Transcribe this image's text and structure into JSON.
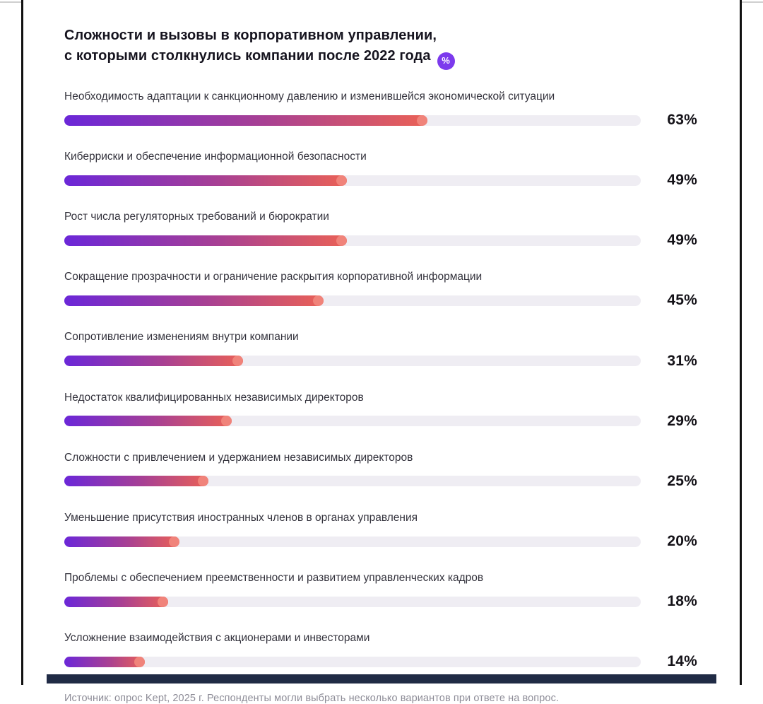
{
  "header": {
    "title_line1": "Сложности и вызовы в корпоративном управлении,",
    "title_line2": "с которыми столкнулись компании после 2022 года",
    "badge_symbol": "%",
    "badge_color": "#7c3aed"
  },
  "chart_data": {
    "type": "bar",
    "orientation": "horizontal",
    "unit": "%",
    "xlim": [
      0,
      100
    ],
    "grid": false,
    "legend": "none",
    "title": "Сложности и вызовы в корпоративном управлении, с которыми столкнулись компании после 2022 года",
    "categories": [
      "Необходимость адаптации к санкционному давлению и изменившейся экономической ситуации",
      "Киберриски и обеспечение информационной безопасности",
      "Рост числа регуляторных требований и бюрократии",
      "Сокращение прозрачности и ограничение раскрытия корпоративной информации",
      "Сопротивление изменениям внутри компании",
      "Недостаток квалифицированных независимых директоров",
      "Сложности с привлечением и удержанием независимых директоров",
      "Уменьшение присутствия иностранных членов в органах управления",
      "Проблемы с обеспечением преемственности и развитием управленческих кадров",
      "Усложнение взаимодействия с акционерами и инвесторами"
    ],
    "values": [
      63,
      49,
      49,
      45,
      31,
      29,
      25,
      20,
      18,
      14
    ],
    "value_labels": [
      "63%",
      "49%",
      "49%",
      "45%",
      "31%",
      "29%",
      "25%",
      "20%",
      "18%",
      "14%"
    ],
    "colors": {
      "gradient_start": "#6b27d8",
      "gradient_end": "#ea6156",
      "end_cap": "#f0837a",
      "track": "#efedf3",
      "value_text": "#141218"
    }
  },
  "footer": {
    "source": "Источник: опрос Kept, 2025 г. Респонденты могли выбрать несколько вариантов при ответе на вопрос."
  }
}
